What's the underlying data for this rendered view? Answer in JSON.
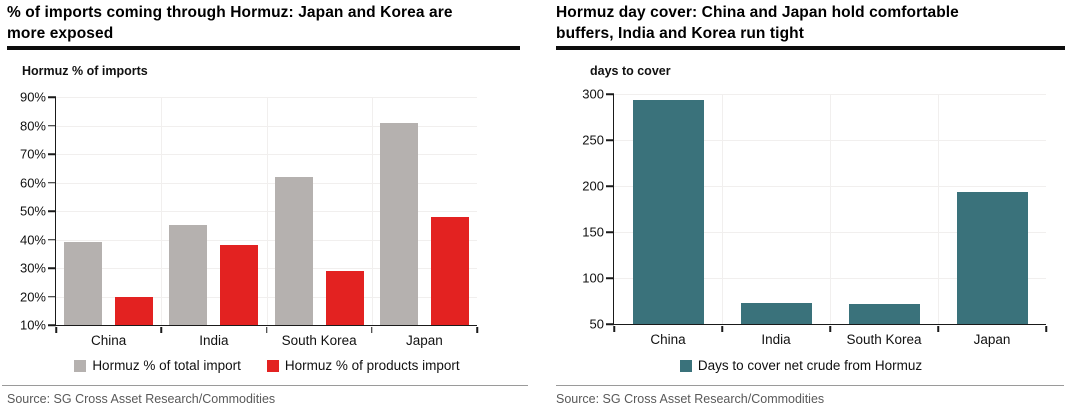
{
  "page": {
    "background": "#ffffff"
  },
  "colors": {
    "total_import_gray": "#b5b1af",
    "products_import_red": "#e32221",
    "day_cover_teal": "#3a727b",
    "axis": "#1a1a1a",
    "gridline": "#f1efee",
    "source_text": "#595959"
  },
  "chart_data": [
    {
      "type": "bar",
      "title": "% of imports coming through Hormuz: Japan and Korea are more exposed",
      "title_lines": [
        "% of imports coming through Hormuz: Japan and Korea are",
        "more exposed"
      ],
      "ylabel": "Hormuz % of imports",
      "categories": [
        "China",
        "India",
        "South Korea",
        "Japan"
      ],
      "series": [
        {
          "name": "Hormuz % of total import",
          "color": "#b5b1af",
          "values": [
            39,
            45,
            62,
            81
          ]
        },
        {
          "name": "Hormuz % of products import",
          "color": "#e32221",
          "values": [
            20,
            38,
            29,
            48
          ]
        }
      ],
      "ylim": [
        10,
        90
      ],
      "ytick_step": 10,
      "y_ticks": [
        "90%",
        "80%",
        "70%",
        "60%",
        "50%",
        "40%",
        "30%",
        "20%",
        "10%"
      ],
      "unit": "%",
      "grid": true,
      "legend_position": "bottom",
      "source": "Source: SG Cross Asset Research/Commodities"
    },
    {
      "type": "bar",
      "title": "Hormuz day cover: China and Japan hold comfortable buffers, India and Korea run tight",
      "title_lines": [
        "Hormuz day cover: China and Japan hold comfortable",
        "buffers, India and Korea run tight"
      ],
      "ylabel": "days to cover",
      "categories": [
        "China",
        "India",
        "South Korea",
        "Japan"
      ],
      "series": [
        {
          "name": "Days to cover net crude from Hormuz",
          "color": "#3a727b",
          "values": [
            293,
            73,
            72,
            193
          ]
        }
      ],
      "ylim": [
        50,
        300
      ],
      "ytick_step": 50,
      "y_ticks": [
        "300",
        "250",
        "200",
        "150",
        "100",
        "50"
      ],
      "unit": "days",
      "grid": true,
      "legend_position": "bottom",
      "source": "Source: SG Cross Asset Research/Commodities"
    }
  ]
}
